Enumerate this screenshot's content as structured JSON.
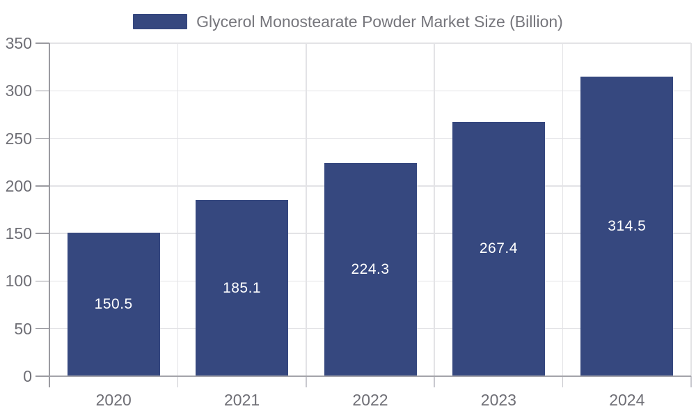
{
  "chart_data": {
    "type": "bar",
    "title": "Glycerol Monostearate Powder Market Size (Billion)",
    "series_name": "Glycerol Monostearate Powder Market Size (Billion)",
    "categories": [
      "2020",
      "2021",
      "2022",
      "2023",
      "2024"
    ],
    "values": [
      150.5,
      185.1,
      224.3,
      267.4,
      314.5
    ],
    "xlabel": "",
    "ylabel": "",
    "ylim": [
      0,
      350
    ],
    "yticks": [
      0,
      50,
      100,
      150,
      200,
      250,
      300,
      350
    ],
    "grid": true,
    "legend_position": "top-center",
    "value_labels_position": "inside-center",
    "colors": {
      "bar": "#36487F",
      "grid_line": "#E3E3E6",
      "axis_line": "#9B9BA1",
      "x_axis_line": "#A4A4AA",
      "minor_tick": "#C9C9CF",
      "axis_label_text": "#6F6F76",
      "legend_text": "#76767C",
      "value_label_text": "#FFFFFF",
      "background": "#FFFFFF"
    }
  }
}
